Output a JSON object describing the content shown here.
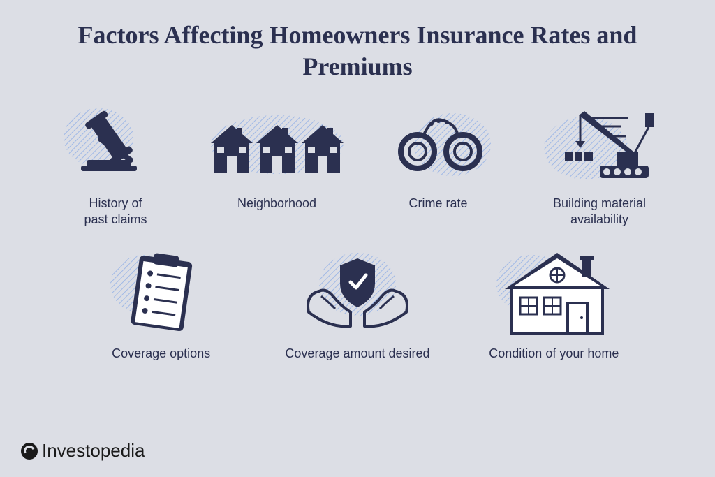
{
  "title": "Factors Affecting Homeowners Insurance Rates and Premiums",
  "colors": {
    "background": "#dcdee5",
    "text": "#2b3050",
    "icon_dark": "#2b3050",
    "icon_light": "#a8c0ec",
    "hatch": "#9fb8e6",
    "white": "#ffffff"
  },
  "factors": [
    {
      "label": "History of\npast claims",
      "icon": "gavel"
    },
    {
      "label": "Neighborhood",
      "icon": "houses"
    },
    {
      "label": "Crime rate",
      "icon": "handcuffs"
    },
    {
      "label": "Building material\navailability",
      "icon": "crane"
    },
    {
      "label": "Coverage options",
      "icon": "clipboard"
    },
    {
      "label": "Coverage amount desired",
      "icon": "hands-shield"
    },
    {
      "label": "Condition of your home",
      "icon": "house-single"
    }
  ],
  "brand": "Investopedia",
  "layout": {
    "row1_count": 4,
    "row2_count": 3,
    "blob_pattern": "diagonal-hatch"
  }
}
